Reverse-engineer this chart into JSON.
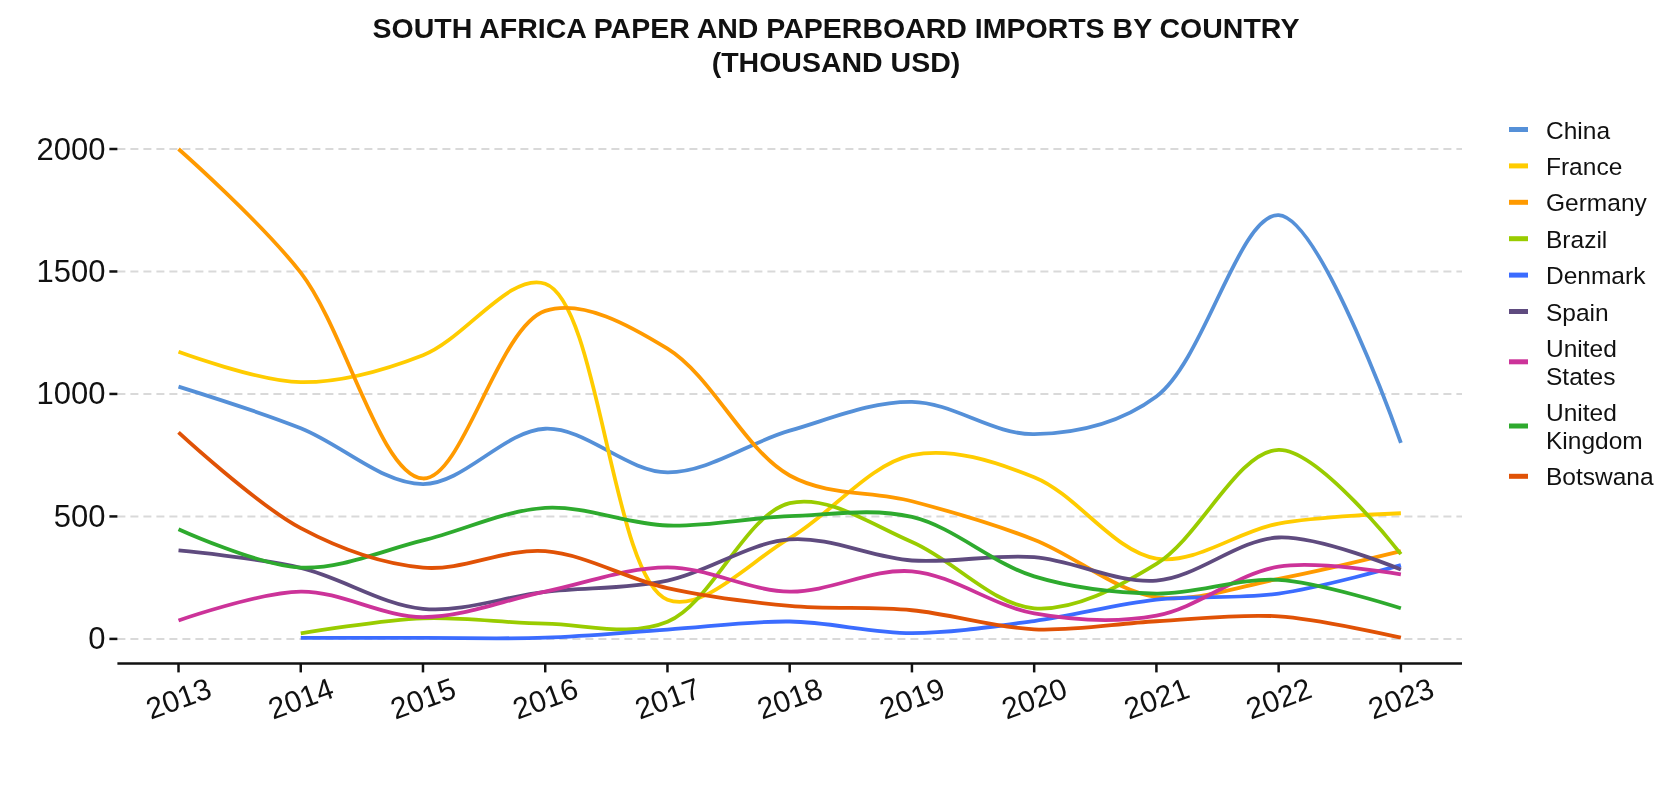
{
  "chart_data": {
    "type": "line",
    "title": "SOUTH AFRICA PAPER AND PAPERBOARD IMPORTS BY COUNTRY (THOUSAND USD)",
    "x": [
      2013,
      2014,
      2015,
      2016,
      2017,
      2018,
      2019,
      2020,
      2021,
      2022,
      2023
    ],
    "xlim": [
      2012.5,
      2023.5
    ],
    "xticks": [
      2013,
      2014,
      2015,
      2016,
      2017,
      2018,
      2019,
      2020,
      2021,
      2022,
      2023
    ],
    "ylim": [
      -100,
      2000
    ],
    "yticks": [
      0,
      500,
      1000,
      1500,
      2000
    ],
    "grid": "y",
    "legend": "right",
    "line_style": "solid",
    "series": [
      {
        "name": "China",
        "color": "#5590d8",
        "values": [
          1030,
          860,
          632,
          858,
          680,
          850,
          968,
          836,
          990,
          1730,
          800
        ]
      },
      {
        "name": "France",
        "color": "#ffcc00",
        "values": [
          1172,
          1048,
          1158,
          1450,
          160,
          411,
          750,
          660,
          328,
          471,
          513
        ]
      },
      {
        "name": "Germany",
        "color": "#ff9a00",
        "values": [
          2000,
          1495,
          655,
          1339,
          1185,
          667,
          562,
          405,
          171,
          245,
          358
        ]
      },
      {
        "name": "Brazil",
        "color": "#99cc00",
        "values": [
          null,
          23,
          84,
          62,
          70,
          554,
          396,
          125,
          306,
          772,
          346
        ]
      },
      {
        "name": "Denmark",
        "color": "#3b6cff",
        "values": [
          null,
          4,
          4,
          5,
          38,
          71,
          24,
          73,
          160,
          185,
          301
        ]
      },
      {
        "name": "Spain",
        "color": "#5f4b7f",
        "values": [
          361,
          290,
          123,
          192,
          238,
          406,
          320,
          334,
          238,
          414,
          283
        ]
      },
      {
        "name": "United States",
        "color": "#cc3399",
        "values": [
          75,
          193,
          89,
          193,
          292,
          193,
          276,
          104,
          95,
          295,
          263
        ]
      },
      {
        "name": "United Kingdom",
        "color": "#2eaa2e",
        "values": [
          448,
          291,
          402,
          535,
          463,
          501,
          498,
          255,
          185,
          241,
          125
        ]
      },
      {
        "name": "Botswana",
        "color": "#e05206",
        "values": [
          843,
          452,
          291,
          358,
          207,
          135,
          117,
          39,
          72,
          92,
          5
        ]
      }
    ]
  }
}
